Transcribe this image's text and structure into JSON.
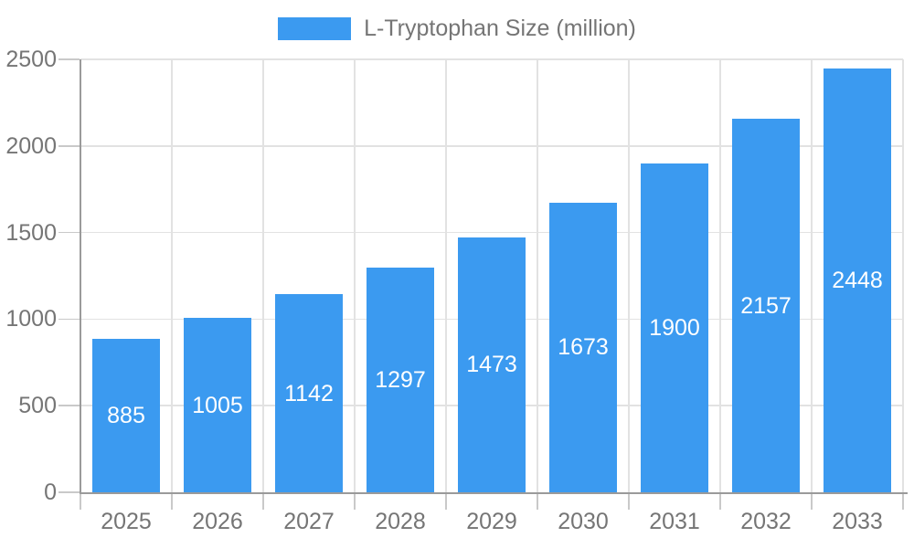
{
  "chart_data": {
    "type": "bar",
    "title": "L-Tryptophan Size (million)",
    "categories": [
      "2025",
      "2026",
      "2027",
      "2028",
      "2029",
      "2030",
      "2031",
      "2032",
      "2033"
    ],
    "values": [
      885,
      1005,
      1142,
      1297,
      1473,
      1673,
      1900,
      2157,
      2448
    ],
    "xlabel": "",
    "ylabel": "",
    "ylim": [
      0,
      2500
    ],
    "yticks": [
      0,
      500,
      1000,
      1500,
      2000,
      2500
    ],
    "grid": true,
    "legend_entries": [
      "L-Tryptophan Size (million)"
    ],
    "legend_position": "top-center",
    "bar_color": "#3B9AF0",
    "value_label_color": "#FFFFFF",
    "axis_text_color": "#757575",
    "value_label_placement": "inside-center"
  }
}
